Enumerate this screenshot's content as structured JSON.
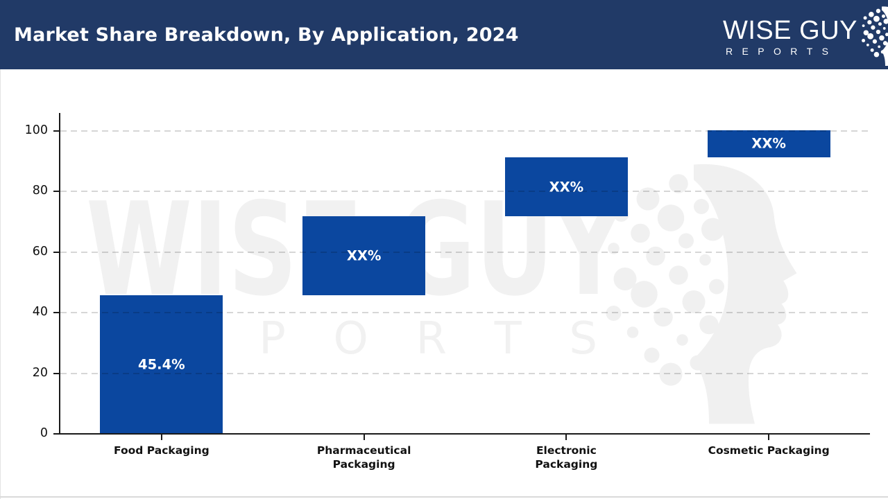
{
  "header": {
    "title": "Market Share Breakdown, By Application, 2024",
    "logo": {
      "wordmark": "WISE GUY",
      "subtext": "REPORTS"
    }
  },
  "watermark": {
    "wordmark": "WISE GUY",
    "subtext": "REPORTS"
  },
  "chart_data": {
    "type": "bar",
    "variant": "waterfall",
    "title": "Market Share Breakdown, By Application, 2024",
    "categories": [
      "Food Packaging",
      "Pharmaceutical Packaging",
      "Electronic Packaging",
      "Cosmetic Packaging"
    ],
    "category_lines": [
      [
        "Food Packaging"
      ],
      [
        "Pharmaceutical",
        "Packaging"
      ],
      [
        "Electronic",
        "Packaging"
      ],
      [
        "Cosmetic Packaging"
      ]
    ],
    "segments": [
      {
        "category": "Food Packaging",
        "start": 0,
        "end": 45.4,
        "label": "45.4%"
      },
      {
        "category": "Pharmaceutical Packaging",
        "start": 45.4,
        "end": 71.5,
        "label": "XX%"
      },
      {
        "category": "Electronic Packaging",
        "start": 71.5,
        "end": 91,
        "label": "XX%"
      },
      {
        "category": "Cosmetic Packaging",
        "start": 91,
        "end": 100,
        "label": "XX%"
      }
    ],
    "xlabel": "",
    "ylabel": "",
    "ylim": [
      0,
      100
    ],
    "yticks": [
      0,
      20,
      40,
      60,
      80,
      100
    ],
    "grid": "horizontal-dashed",
    "legend": "none",
    "bar_color": "#0b479f",
    "bar_label_color": "#ffffff"
  },
  "colors": {
    "header_bg": "#213a67",
    "bar": "#0b479f",
    "axis": "#1a1a1a",
    "watermark": "#f1f1f1",
    "title_text": "#ffffff",
    "tick_text": "#111111"
  }
}
